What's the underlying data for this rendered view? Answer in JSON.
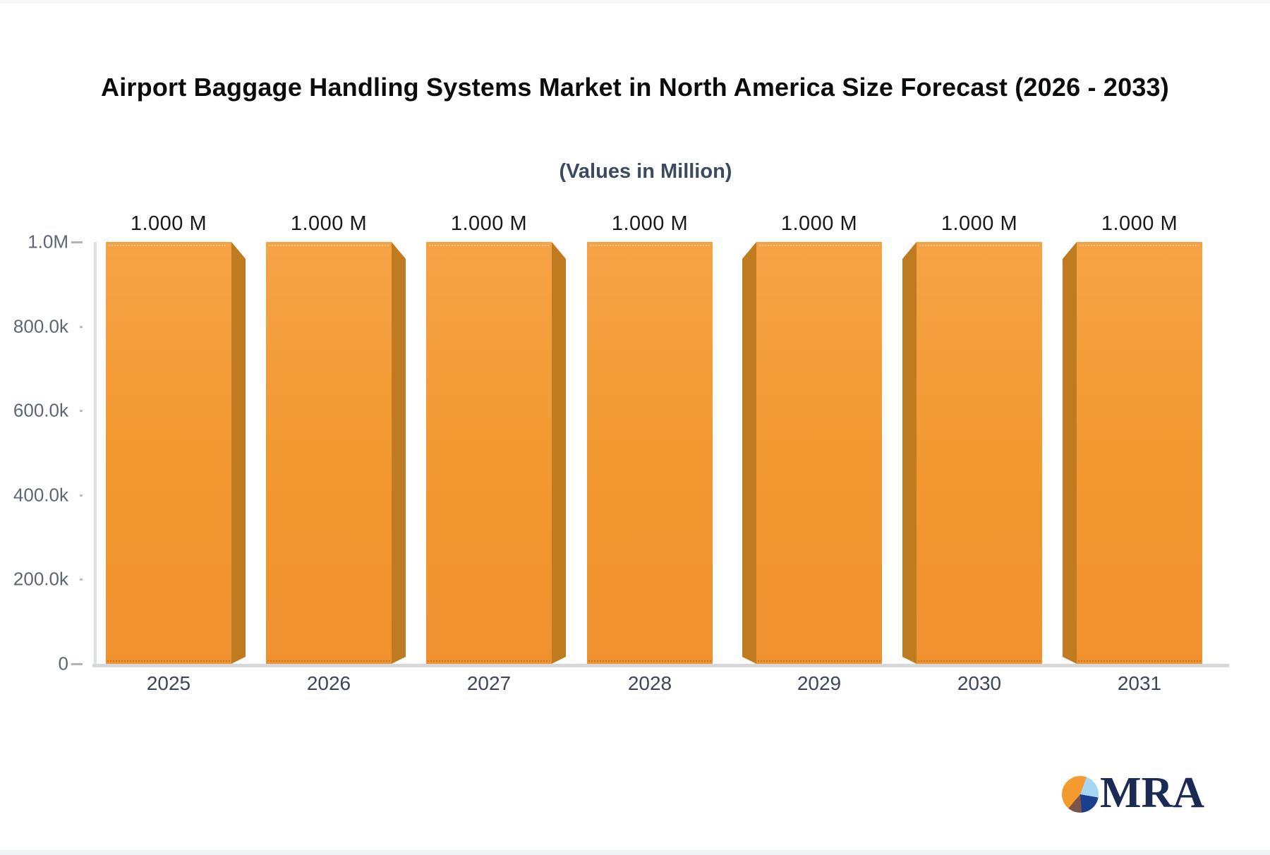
{
  "header": {
    "title": "Airport Baggage Handling Systems Market in North America Size Forecast (2026 - 2033)",
    "subtitle": "(Values in Million)"
  },
  "chart_data": {
    "type": "bar",
    "title": "Airport Baggage Handling Systems Market in North America Size Forecast (2026 - 2033)",
    "subtitle": "(Values in Million)",
    "unit": "Million",
    "categories": [
      "2025",
      "2026",
      "2027",
      "2028",
      "2029",
      "2030",
      "2031"
    ],
    "values": [
      1000000,
      1000000,
      1000000,
      1000000,
      1000000,
      1000000,
      1000000
    ],
    "bar_labels": [
      "1.000 M",
      "1.000 M",
      "1.000 M",
      "1.000 M",
      "1.000 M",
      "1.000 M",
      "1.000 M"
    ],
    "ylim": [
      0,
      1000000
    ],
    "yticks": [
      {
        "label": "1.0M",
        "value": 1000000,
        "major": true
      },
      {
        "label": "800.0k",
        "value": 800000,
        "major": false
      },
      {
        "label": "600.0k",
        "value": 600000,
        "major": false
      },
      {
        "label": "400.0k",
        "value": 400000,
        "major": false
      },
      {
        "label": "200.0k",
        "value": 200000,
        "major": false
      },
      {
        "label": "0",
        "value": 0,
        "major": true
      }
    ],
    "grid": false,
    "legend": false,
    "colors": {
      "bar_face": "#F2982F",
      "bar_side": "#C07A20",
      "axis_line": "#D4D8DD",
      "y_tick_label": "#5D6673",
      "category_label": "#3D4757",
      "value_label": "#17191C",
      "title": "#0B0C0E",
      "subtitle": "#3B4A61"
    }
  },
  "logo": {
    "text": "MRA",
    "text_color": "#1B2A55",
    "pie_colors": {
      "orange": "#F59B2D",
      "light_blue": "#A6D6F2",
      "navy": "#1C3E8F",
      "brown": "#7D544B"
    }
  }
}
